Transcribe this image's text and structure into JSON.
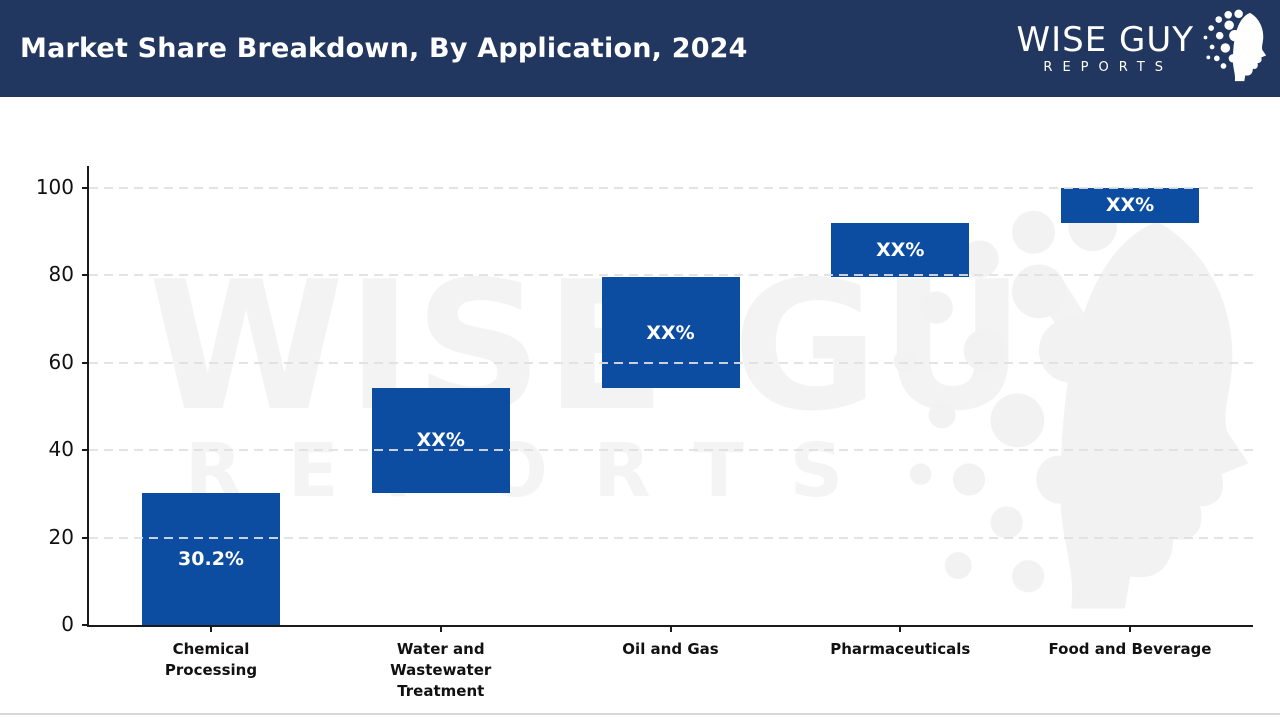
{
  "header": {
    "title": "Market Share Breakdown, By Application, 2024",
    "bg_color": "#21375f",
    "logo": {
      "line1": "WISE GUY",
      "line2": "REPORTS"
    }
  },
  "watermark": {
    "line1": "WISE GUY",
    "line2": "REPORTS"
  },
  "chart_data": {
    "type": "bar",
    "subtype": "waterfall",
    "title": "Market Share Breakdown, By Application, 2024",
    "categories": [
      "Chemical Processing",
      "Water and Wastewater Treatment",
      "Oil and Gas",
      "Pharmaceuticals",
      "Food and Beverage"
    ],
    "categories_wrapped": [
      [
        "Chemical",
        "Processing"
      ],
      [
        "Water and",
        "Wastewater",
        "Treatment"
      ],
      [
        "Oil and Gas"
      ],
      [
        "Pharmaceuticals"
      ],
      [
        "Food and Beverage"
      ]
    ],
    "segments": [
      {
        "start": 0,
        "end": 30.2
      },
      {
        "start": 30.2,
        "end": 54.2
      },
      {
        "start": 54.2,
        "end": 79.5
      },
      {
        "start": 79.5,
        "end": 91.9
      },
      {
        "start": 91.9,
        "end": 100
      }
    ],
    "values": [
      30.2,
      24.0,
      25.3,
      12.4,
      8.1
    ],
    "value_labels": [
      "30.2%",
      "XX%",
      "XX%",
      "XX%",
      "XX%"
    ],
    "ylim": [
      0,
      105
    ],
    "yticks": [
      0,
      20,
      40,
      60,
      80,
      100
    ],
    "xlabel": "",
    "ylabel": "",
    "grid": "horizontal dashed",
    "legend": "none",
    "bar_color": "#0c4da2",
    "value_label_color": "#ffffff",
    "grid_color": "#e0e0e0",
    "axis_color": "#1a1a1a"
  }
}
